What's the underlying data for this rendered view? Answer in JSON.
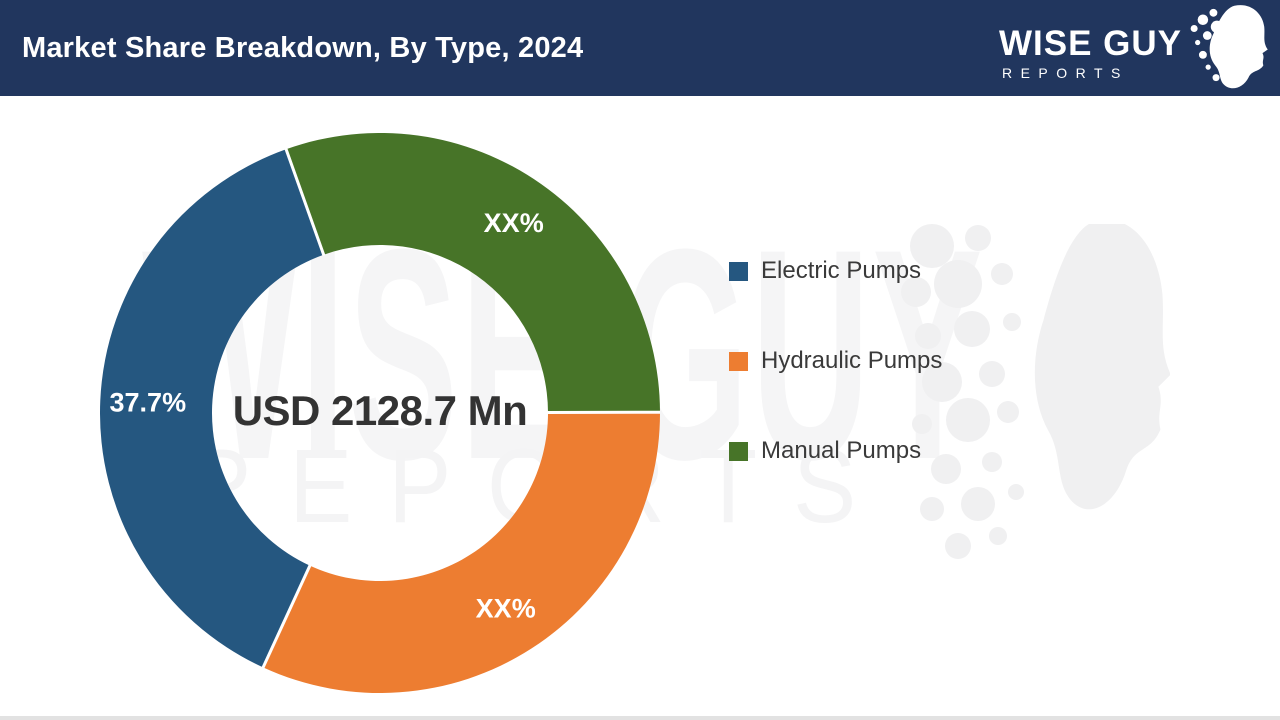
{
  "header": {
    "title": "Market Share Breakdown, By Type, 2024",
    "bg_color": "#21365E",
    "logo": {
      "line1": "WISE GUY",
      "line2": "REPORTS"
    }
  },
  "watermark": {
    "big_text": "WISE GUY",
    "spaced_text": "REPORTS"
  },
  "chart_data": {
    "type": "pie",
    "subtype": "donut",
    "title": "Market Share Breakdown, By Type, 2024",
    "center_label": "USD 2128.7 Mn",
    "start_angle_deg": 109.6,
    "direction": "ccw",
    "inner_radius_ratio": 0.6,
    "label_radius_ratio": 0.83,
    "legend_position": "right",
    "segments": [
      {
        "name": "Electric Pumps",
        "value_pct": 37.7,
        "label": "37.7%",
        "color": "#255780"
      },
      {
        "name": "Hydraulic Pumps",
        "value_pct": 31.9,
        "label": "XX%",
        "color": "#ED7D31"
      },
      {
        "name": "Manual Pumps",
        "value_pct": 30.4,
        "label": "XX%",
        "color": "#477428"
      }
    ]
  }
}
